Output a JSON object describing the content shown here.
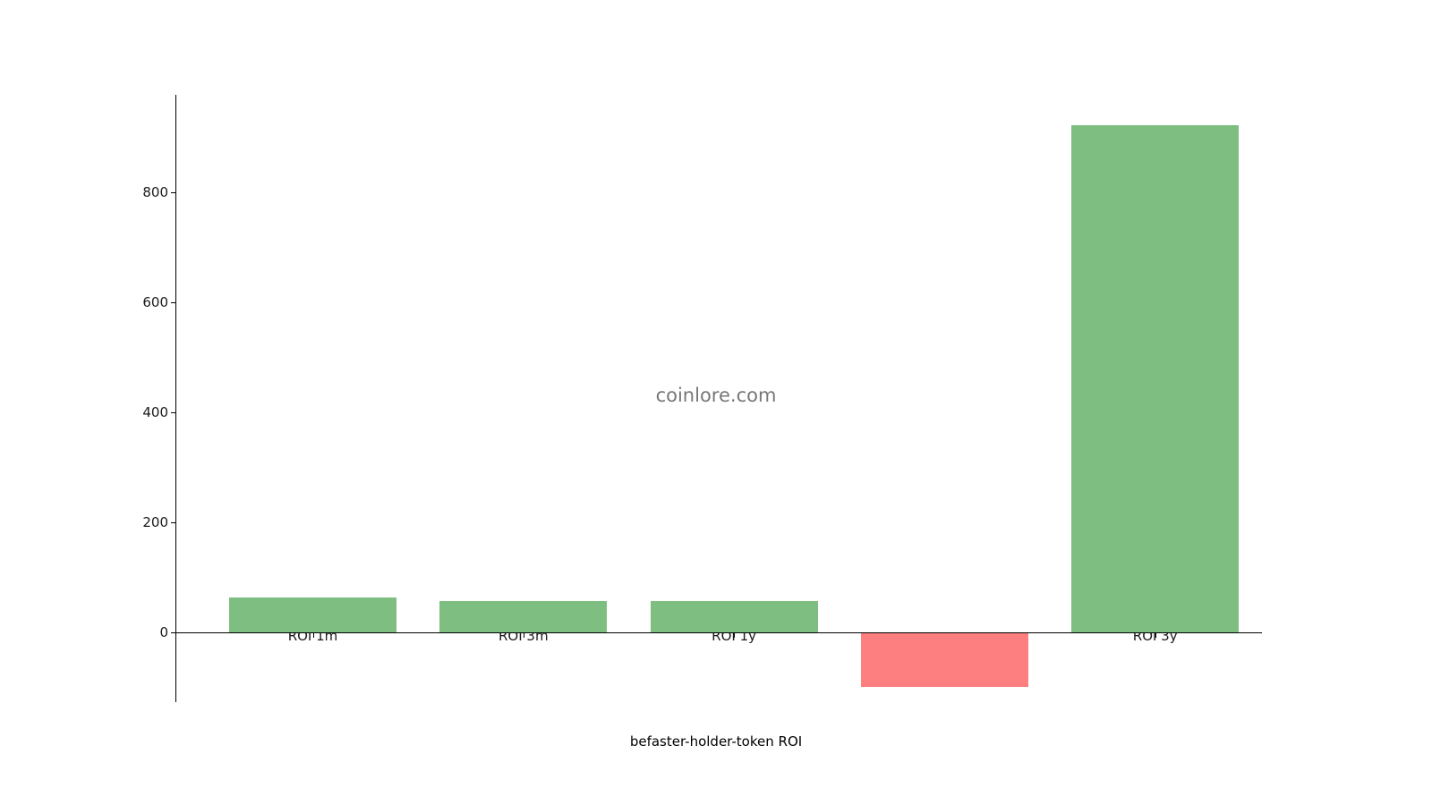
{
  "chart_data": {
    "type": "bar",
    "categories": [
      "ROI 1m",
      "ROI 3m",
      "ROI 1y",
      "",
      "ROI 3y"
    ],
    "values": [
      63,
      57,
      57,
      -98,
      922
    ],
    "title": "befaster-holder-token ROI",
    "watermark": "coinlore.com",
    "xlabel": "",
    "ylabel": "",
    "yticks": [
      0,
      200,
      400,
      600,
      800
    ],
    "ylim": [
      -127,
      979
    ],
    "grid": false,
    "legend": false,
    "colors": {
      "positive_bar": "#7ebe80",
      "negative_bar": "#fd7f7f",
      "axis": "#000000",
      "tick_text": "#1a1a1a",
      "watermark_text": "#777778"
    }
  }
}
